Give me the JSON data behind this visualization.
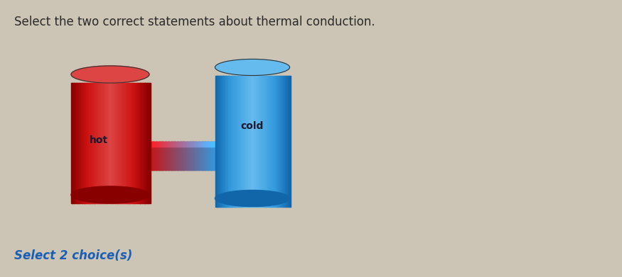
{
  "title": "Select the two correct statements about thermal conduction.",
  "title_fontsize": 12,
  "title_color": "#2a2a2a",
  "background_color": "#ccc5b5",
  "footer_text": "Select 2 choice(s)",
  "footer_color": "#1a5fb4",
  "footer_fontsize": 12,
  "hot_label": "hot",
  "cold_label": "cold",
  "label_color": "#1a1a2e",
  "label_fontsize": 10,
  "hot_color": "#cc1111",
  "hot_top_color": "#dd4444",
  "hot_dark_color": "#880000",
  "cold_color": "#3399dd",
  "cold_top_color": "#66bbee",
  "cold_dark_color": "#1166aa",
  "rod_top_color": "#884488",
  "rod_bot_color": "#442266"
}
